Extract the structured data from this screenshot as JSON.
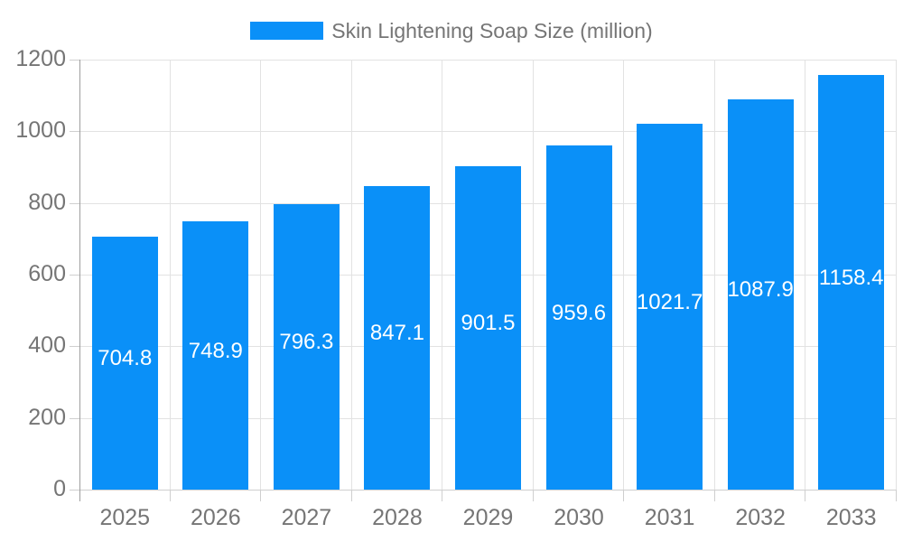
{
  "chart_data": {
    "type": "bar",
    "legend": "Skin Lightening Soap Size (million)",
    "legend_position": "top-center",
    "categories": [
      "2025",
      "2026",
      "2027",
      "2028",
      "2029",
      "2030",
      "2031",
      "2032",
      "2033"
    ],
    "series": [
      {
        "name": "Skin Lightening Soap Size (million)",
        "values": [
          704.8,
          748.9,
          796.3,
          847.1,
          901.5,
          959.6,
          1021.7,
          1087.9,
          1158.4
        ]
      }
    ],
    "value_labels": [
      "704.8",
      "748.9",
      "796.3",
      "847.1",
      "901.5",
      "959.6",
      "1021.7",
      "1087.9",
      "1158.4"
    ],
    "xlabel": "",
    "ylabel": "",
    "ylim": [
      0,
      1200
    ],
    "yticks": [
      0,
      200,
      400,
      600,
      800,
      1000,
      1200
    ],
    "grid": true,
    "colors": {
      "bar": "#0a90f8",
      "axis_text": "#757575",
      "grid_line": "#e2e2e2",
      "baseline": "#cfcfcf",
      "tick": "#cfcfcf",
      "axis_line": "#9e9e9e",
      "value_label": "#ffffff",
      "background": "#ffffff"
    }
  }
}
